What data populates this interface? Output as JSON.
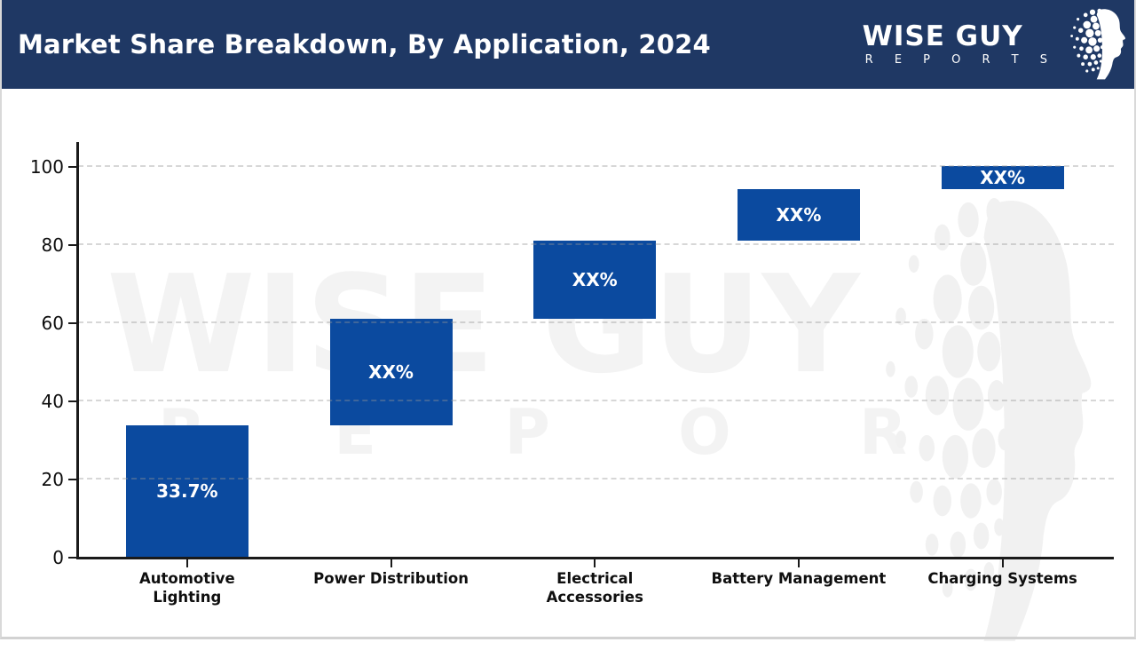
{
  "header": {
    "title": "Market Share Breakdown, By Application, 2024",
    "bg_color": "#1f3864",
    "logo": {
      "name": "WISE GUY",
      "tagline": "R E P O R T S"
    }
  },
  "watermark": {
    "line1": "WISE GUY",
    "line2": "R E P O R T S"
  },
  "chart_data": {
    "type": "bar",
    "subtype": "waterfall",
    "title": "Market Share Breakdown, By Application, 2024",
    "xlabel": "",
    "ylabel": "",
    "ylim": [
      0,
      100
    ],
    "yticks": [
      0,
      20,
      40,
      60,
      80,
      100
    ],
    "grid": true,
    "legend": false,
    "bar_color": "#0b4a9f",
    "value_label_color": "#ffffff",
    "categories": [
      "Automotive Lighting",
      "Power Distribution",
      "Electrical Accessories",
      "Battery Management",
      "Charging Systems"
    ],
    "category_lines": [
      [
        "Automotive",
        "Lighting"
      ],
      [
        "Power Distribution"
      ],
      [
        "Electrical",
        "Accessories"
      ],
      [
        "Battery Management"
      ],
      [
        "Charging Systems"
      ]
    ],
    "segments": [
      {
        "category": "Automotive Lighting",
        "start": 0,
        "end": 33.7,
        "label": "33.7%"
      },
      {
        "category": "Power Distribution",
        "start": 33.7,
        "end": 61,
        "label": "XX%"
      },
      {
        "category": "Electrical Accessories",
        "start": 61,
        "end": 81,
        "label": "XX%"
      },
      {
        "category": "Battery Management",
        "start": 81,
        "end": 94,
        "label": "XX%"
      },
      {
        "category": "Charging Systems",
        "start": 94,
        "end": 100,
        "label": "XX%"
      }
    ]
  }
}
